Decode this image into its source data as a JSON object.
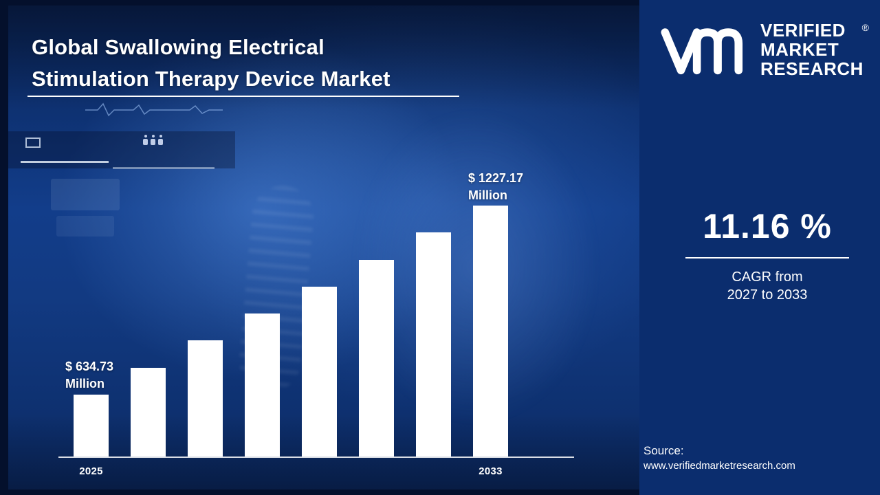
{
  "title": {
    "line1": "Global Swallowing Electrical",
    "line2": "Stimulation Therapy Device Market"
  },
  "brand": {
    "name_line1": "VERIFIED",
    "name_line2": "MARKET",
    "name_line3": "RESEARCH",
    "registered_mark": "®",
    "logo": "vmr-monogram"
  },
  "kpi": {
    "value": "11.16 %",
    "caption_line1": "CAGR from",
    "caption_line2": "2027 to 2033"
  },
  "source": {
    "label": "Source:",
    "url": "www.verifiedmarketresearch.com"
  },
  "colors": {
    "outer_background": "#04102c",
    "photo_blue": "#123a82",
    "panel_blue": "#0b2d6e",
    "bar": "#ffffff",
    "text": "#ffffff"
  },
  "chart_data": {
    "type": "bar",
    "title": "Global Swallowing Electrical Stimulation Therapy Device Market",
    "unit": "USD Million",
    "categories": [
      "2025",
      "",
      "",
      "",
      "",
      "",
      "",
      "2033"
    ],
    "values": [
      634.73,
      719.36,
      804.0,
      888.62,
      973.25,
      1057.88,
      1142.51,
      1227.17
    ],
    "note": "Only first and last bars carry data labels in the image; intermediate values are linear-interpolated estimates.",
    "bar_color": "#ffffff",
    "grid": false,
    "legend": "none",
    "x_labels": {
      "first": "2025",
      "last": "2033"
    },
    "labels": {
      "first_value": "$ 634.73",
      "first_unit": "Million",
      "last_value": "$ 1227.17",
      "last_unit": "Million"
    }
  }
}
